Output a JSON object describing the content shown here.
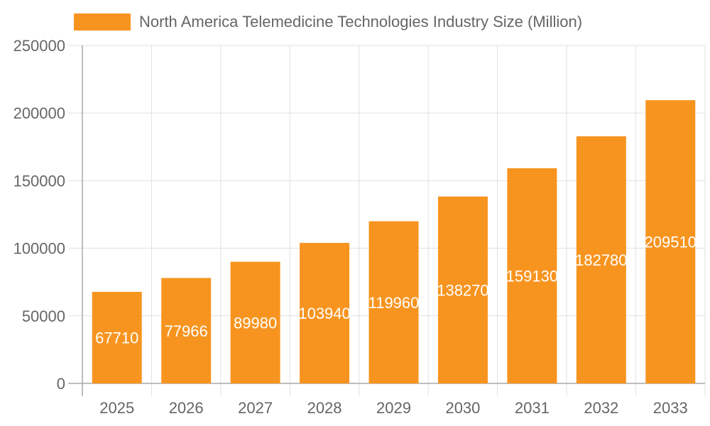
{
  "chart_data": {
    "type": "bar",
    "title": "",
    "xlabel": "",
    "ylabel": "",
    "categories": [
      "2025",
      "2026",
      "2027",
      "2028",
      "2029",
      "2030",
      "2031",
      "2032",
      "2033"
    ],
    "series": [
      {
        "name": "North America Telemedicine Technologies Industry Size (Million)",
        "values": [
          67710,
          77966,
          89980,
          103940,
          119960,
          138270,
          159130,
          182780,
          209510
        ],
        "color": "#f7941f"
      }
    ],
    "ylim": [
      0,
      250000
    ],
    "yticks": [
      "0",
      "50000",
      "100000",
      "150000",
      "200000",
      "250000"
    ],
    "grid": true,
    "legend": "top",
    "data_labels": true
  }
}
